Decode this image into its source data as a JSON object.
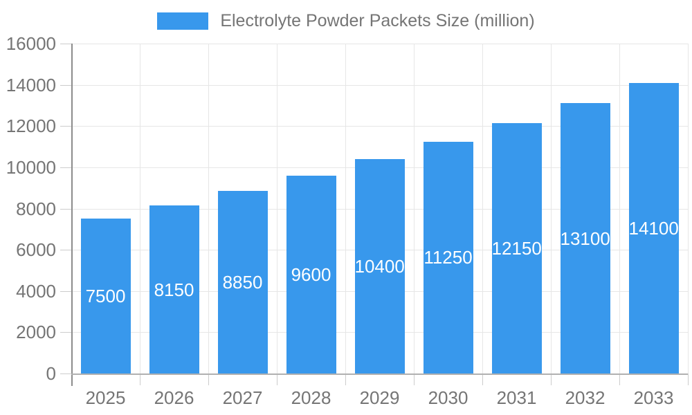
{
  "chart_data": {
    "type": "bar",
    "title": "Electrolyte Powder Packets Size (million)",
    "categories": [
      "2025",
      "2026",
      "2027",
      "2028",
      "2029",
      "2030",
      "2031",
      "2032",
      "2033"
    ],
    "values": [
      7500,
      8150,
      8850,
      9600,
      10400,
      11250,
      12150,
      13100,
      14100
    ],
    "xlabel": "",
    "ylabel": "",
    "ylim": [
      0,
      16000
    ],
    "yticks": [
      0,
      2000,
      4000,
      6000,
      8000,
      10000,
      12000,
      14000,
      16000
    ],
    "grid": true,
    "legend_position": "top",
    "colors": {
      "bar": "#3898ec",
      "value_label": "#ffffff",
      "axis_text": "#757575",
      "gridline": "#e6e6e6",
      "y_axis_line": "#8c8c8c",
      "x_axis_line": "#b0b0b0",
      "tick": "#cccccc"
    }
  }
}
